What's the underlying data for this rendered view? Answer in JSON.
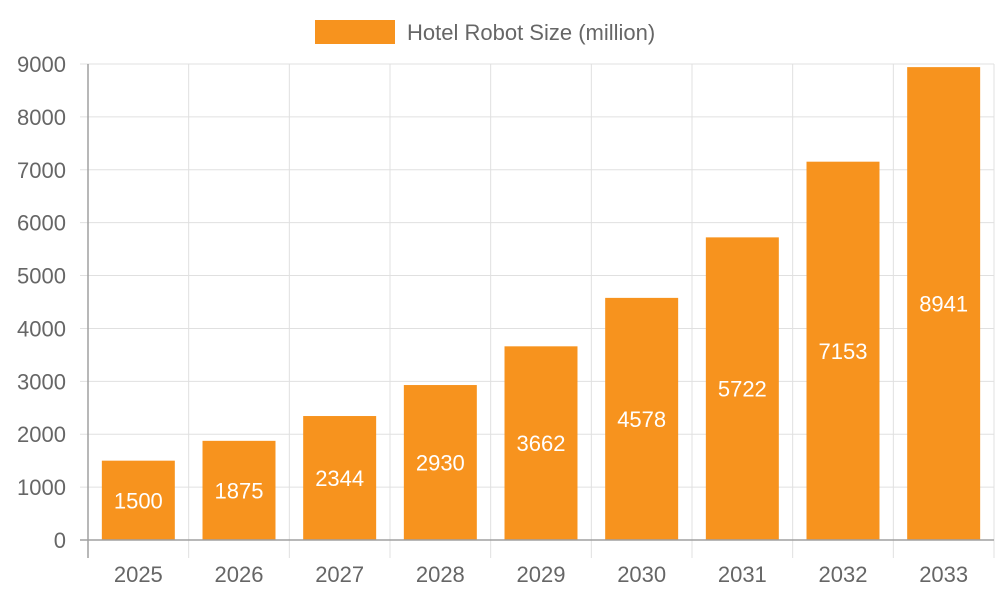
{
  "colors": {
    "bar": "#f7931e",
    "grid": "#e0e0e0",
    "axis": "#a0a0a0",
    "text": "#666666",
    "data_label": "#ffffff"
  },
  "legend": {
    "label": "Hotel Robot Size (million)"
  },
  "chart_data": {
    "type": "bar",
    "title": "",
    "xlabel": "",
    "ylabel": "",
    "categories": [
      "2025",
      "2026",
      "2027",
      "2028",
      "2029",
      "2030",
      "2031",
      "2032",
      "2033"
    ],
    "series": [
      {
        "name": "Hotel Robot Size (million)",
        "values": [
          1500,
          1875,
          2344,
          2930,
          3662,
          4578,
          5722,
          7153,
          8941
        ]
      }
    ],
    "ylim": [
      0,
      9000
    ],
    "yticks": [
      0,
      1000,
      2000,
      3000,
      4000,
      5000,
      6000,
      7000,
      8000,
      9000
    ],
    "grid": true,
    "legend_position": "top",
    "data_labels": true
  }
}
